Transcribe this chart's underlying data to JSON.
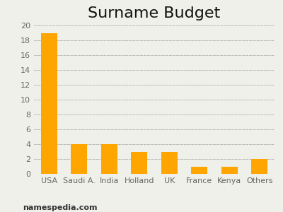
{
  "title": "Surname Budget",
  "categories": [
    "USA",
    "Saudi A.",
    "India",
    "Holland",
    "UK",
    "France",
    "Kenya",
    "Others"
  ],
  "values": [
    19,
    4,
    4,
    3,
    3,
    1,
    1,
    2
  ],
  "bar_color": "#FFA500",
  "ylim": [
    0,
    20
  ],
  "yticks": [
    0,
    2,
    4,
    6,
    8,
    10,
    12,
    14,
    16,
    18,
    20
  ],
  "grid_color": "#bbbbbb",
  "background_color": "#f0f0eb",
  "title_fontsize": 16,
  "tick_fontsize": 8,
  "footer_text": "namespedia.com",
  "footer_fontsize": 8,
  "bar_width": 0.55
}
